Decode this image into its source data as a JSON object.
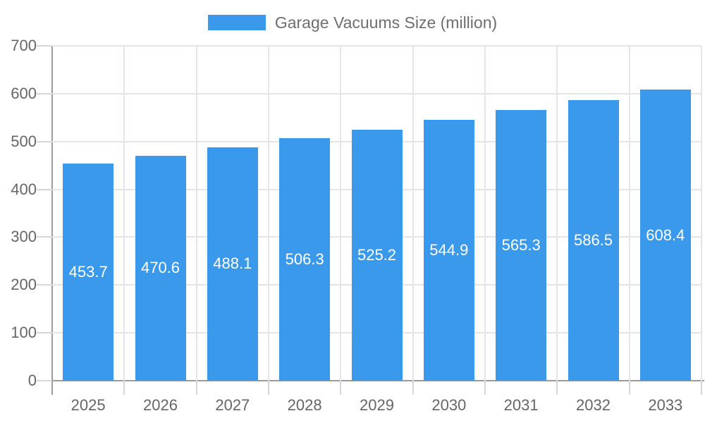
{
  "legend": {
    "items": [
      {
        "label": "Garage Vacuums Size (million)",
        "color": "#3B99EC"
      }
    ]
  },
  "chart_data": {
    "type": "bar",
    "categories": [
      "2025",
      "2026",
      "2027",
      "2028",
      "2029",
      "2030",
      "2031",
      "2032",
      "2033"
    ],
    "series": [
      {
        "name": "Garage Vacuums Size (million)",
        "values": [
          453.7,
          470.6,
          488.1,
          506.3,
          525.2,
          544.9,
          565.3,
          586.5,
          608.4
        ],
        "color": "#3B99EC"
      }
    ],
    "xlabel": "",
    "ylabel": "",
    "ylim": [
      0,
      700
    ],
    "yticks": [
      0,
      100,
      200,
      300,
      400,
      500,
      600,
      700
    ],
    "grid": true,
    "legend_position": "top",
    "value_labels": {
      "show": true,
      "position": "middle",
      "color": "#ffffff"
    }
  },
  "colors": {
    "background": "#ffffff",
    "bar": "#3B99EC",
    "axis_line": "#9c9c9c",
    "gridline": "#e5e5e5",
    "tick": "#d6d6d6",
    "axis_text": "#666666",
    "legend_text": "#6e6e6e",
    "value_label_text": "#ffffff"
  }
}
